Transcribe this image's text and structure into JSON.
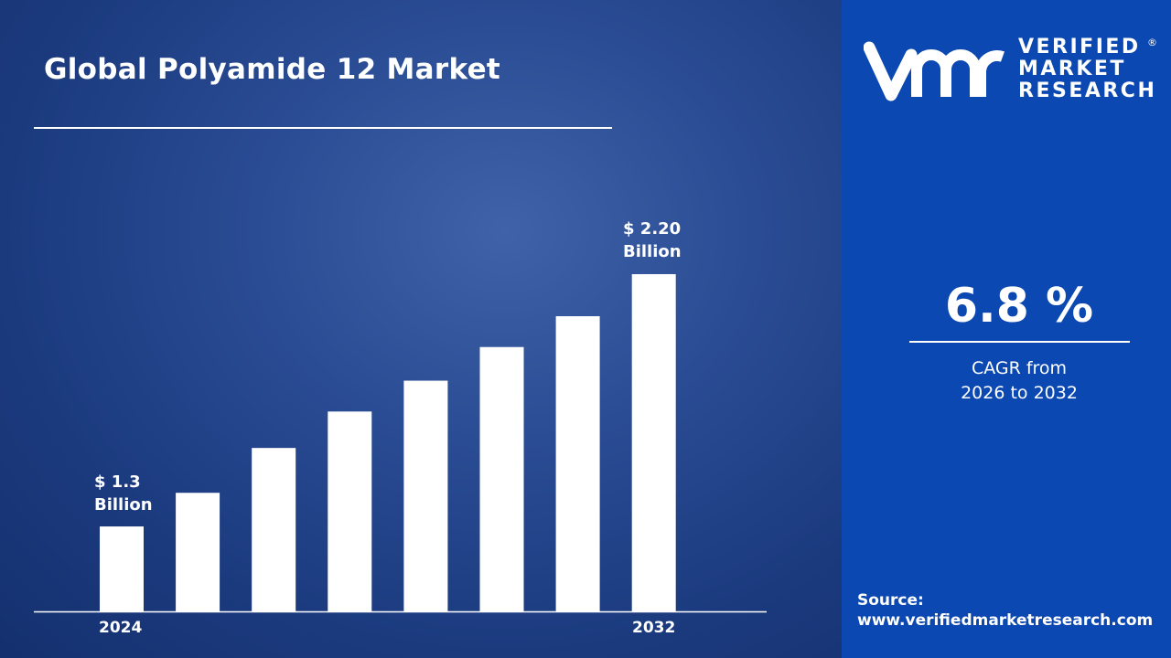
{
  "title": "Global Polyamide 12 Market",
  "chart_data": {
    "type": "bar",
    "categories": [
      "2024",
      "",
      "",
      "",
      "",
      "",
      "",
      "2032"
    ],
    "values": [
      1.3,
      1.42,
      1.58,
      1.71,
      1.82,
      1.94,
      2.05,
      2.2
    ],
    "data_labels": {
      "first": "$ 1.3 Billion",
      "last": "$ 2.20 Billion"
    },
    "first_label_lines": [
      "$ 1.3",
      "Billion"
    ],
    "last_label_lines": [
      "$ 2.20",
      "Billion"
    ],
    "unit": "USD Billion",
    "bar_color": "#ffffff",
    "grid": false,
    "xlabel": "",
    "ylabel": ""
  },
  "cagr": {
    "value": "6.8 %",
    "line1": "CAGR from",
    "line2": "2026 to 2032"
  },
  "brand": {
    "line1": "VERIFIED",
    "line2": "MARKET",
    "line3": "RESEARCH",
    "registered": "®",
    "logo_letters": "vmr"
  },
  "source": {
    "label": "Source:",
    "url": "www.verifiedmarketresearch.com"
  },
  "colors": {
    "panel": "#0b48b2",
    "background": "#1b3a7e"
  }
}
